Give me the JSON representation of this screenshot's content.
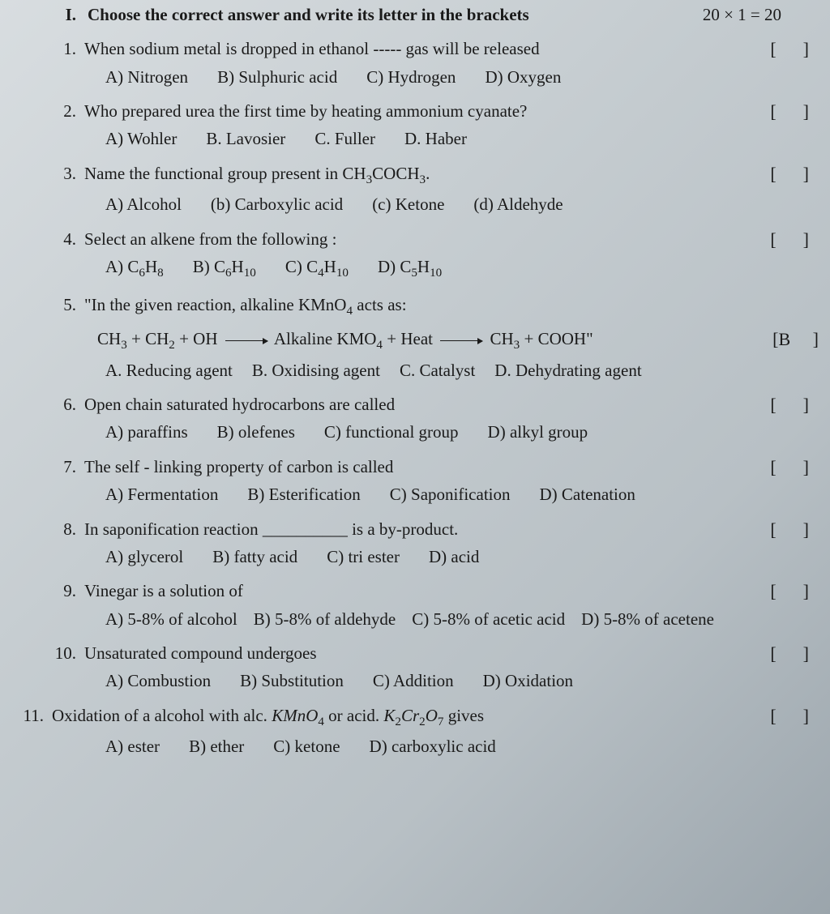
{
  "section": {
    "num": "I.",
    "title": "Choose the correct answer and write its letter in the brackets"
  },
  "score": "20 × 1 = 20",
  "q1": {
    "num": "1.",
    "text": "When sodium metal is dropped in ethanol ----- gas will be released",
    "a": "A) Nitrogen",
    "b": "B) Sulphuric acid",
    "c": "C) Hydrogen",
    "d": "D) Oxygen",
    "bracket": "[      ]"
  },
  "q2": {
    "num": "2.",
    "text": "Who prepared urea the first time by heating ammonium cyanate?",
    "a": "A) Wohler",
    "b": "B. Lavosier",
    "c": "C. Fuller",
    "d": "D. Haber",
    "bracket": "[      ]"
  },
  "q3": {
    "num": "3.",
    "text_pre": "Name the functional group present in CH",
    "text_post": ".",
    "a": "A) Alcohol",
    "b": "(b) Carboxylic acid",
    "c": "(c) Ketone",
    "d": "(d) Aldehyde",
    "bracket": "[      ]"
  },
  "q4": {
    "num": "4.",
    "text": "Select an alkene from the following :",
    "a_pre": "A) C",
    "b_pre": "B) C",
    "c_pre": "C) C",
    "d_pre": "D) C",
    "bracket": "[      ]"
  },
  "q5": {
    "num": "5.",
    "text_pre": "\"In the given reaction, alkaline KMnO",
    "text_post": " acts as:",
    "r1": "CH",
    "r2": " + CH",
    "r3": " + OH ",
    "r4": " Alkaline KMO",
    "r5": " + Heat ",
    "r6": " CH",
    "r7": " + COOH\"",
    "a": "A. Reducing agent",
    "b": "B. Oxidising agent",
    "c": "C. Catalyst",
    "d": "D. Dehydrating agent",
    "bracket": "[B     ]"
  },
  "q6": {
    "num": "6.",
    "text": "Open chain saturated hydrocarbons are called",
    "a": "A) paraffins",
    "b": "B) olefenes",
    "c": "C) functional group",
    "d": "D) alkyl group",
    "bracket": "[      ]"
  },
  "q7": {
    "num": "7.",
    "text": "The self - linking property of carbon is called",
    "a": "A) Fermentation",
    "b": "B) Esterification",
    "c": "C) Saponification",
    "d": "D) Catenation",
    "bracket": "[      ]"
  },
  "q8": {
    "num": "8.",
    "text": "In saponification reaction __________ is a by-product.",
    "a": "A) glycerol",
    "b": "B) fatty acid",
    "c": "C) tri ester",
    "d": "D) acid",
    "bracket": "[      ]"
  },
  "q9": {
    "num": "9.",
    "text": "Vinegar is a solution of",
    "a": "A) 5-8% of alcohol",
    "b": "B) 5-8% of aldehyde",
    "c": "C) 5-8% of acetic acid",
    "d": "D) 5-8% of acetene",
    "bracket": "[      ]"
  },
  "q10": {
    "num": "10.",
    "text": "Unsaturated compound undergoes",
    "a": "A) Combustion",
    "b": "B) Substitution",
    "c": "C) Addition",
    "d": "D) Oxidation",
    "bracket": "[      ]"
  },
  "q11": {
    "num": "11.",
    "text_pre": "Oxidation of a alcohol with alc. ",
    "text_mid": " or acid. ",
    "text_post": " gives",
    "a": "A) ester",
    "b": "B) ether",
    "c": "C) ketone",
    "d": "D) carboxylic acid",
    "bracket": "[      ]"
  }
}
